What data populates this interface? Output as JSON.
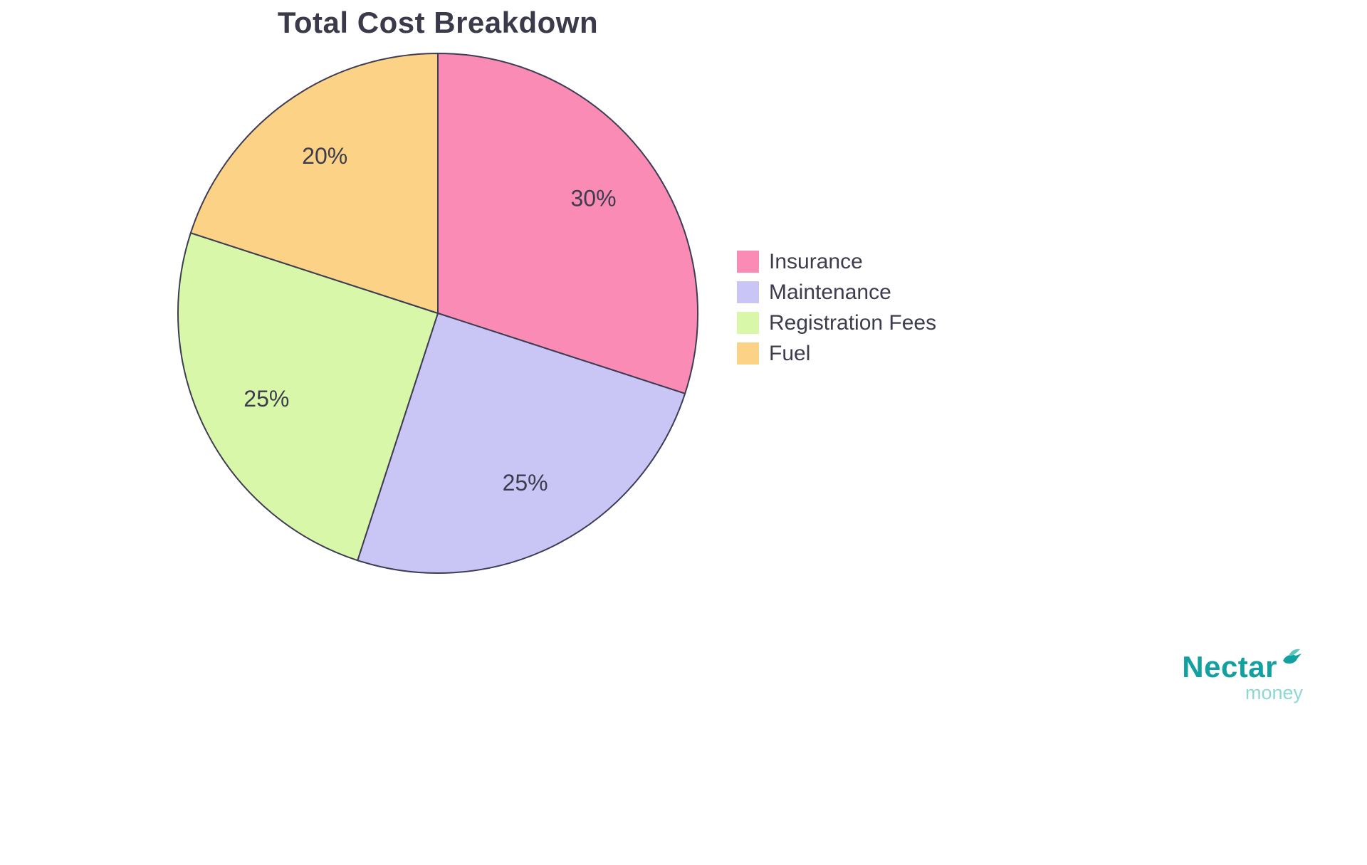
{
  "title": "Total Cost Breakdown",
  "chart_data": {
    "type": "pie",
    "title": "Total Cost Breakdown",
    "labels": [
      "Insurance",
      "Maintenance",
      "Registration Fees",
      "Fuel"
    ],
    "values": [
      30,
      25,
      25,
      20
    ],
    "slice_labels": [
      "30%",
      "25%",
      "25%",
      "20%"
    ],
    "colors": [
      "#F98BB5",
      "#C9C5F5",
      "#D9F7A8",
      "#FBD286"
    ],
    "stroke_color": "#3C3C55",
    "label_color": "#3C3C4E",
    "start_angle_deg": 0,
    "direction": "clockwise",
    "legend_position": "right",
    "unit": "%"
  },
  "brand": {
    "name": "Nectar",
    "sub": "money",
    "color": "#12A0A0",
    "sub_color": "#8ED8D3"
  }
}
